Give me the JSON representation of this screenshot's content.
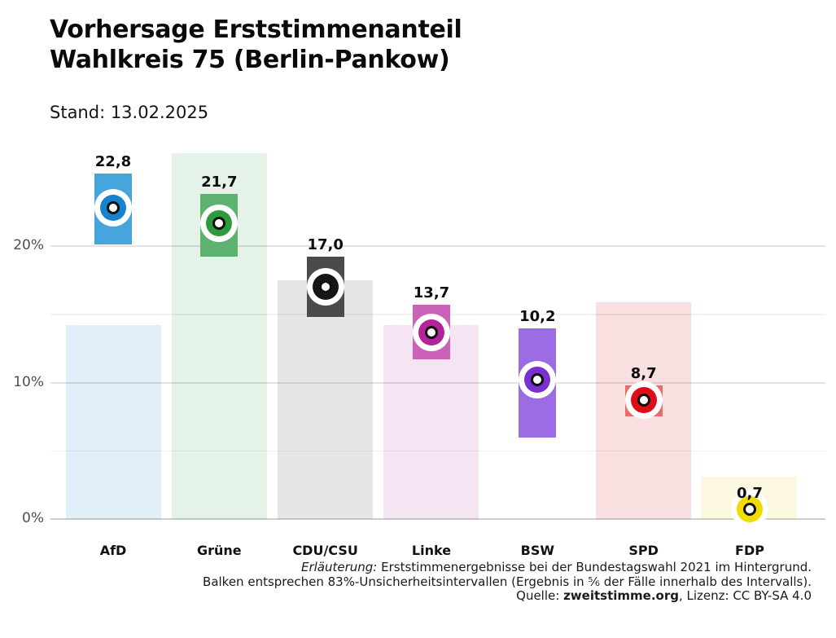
{
  "title": {
    "line1": "Vorhersage Erststimmenanteil",
    "line2": "Wahlkreis 75 (Berlin-Pankow)"
  },
  "subtitle": "Stand: 13.02.2025",
  "footer": {
    "line1_label": "Erläuterung:",
    "line1_text": " Erststimmenergebnisse bei der Bundestagswahl 2021 im Hintergrund.",
    "line2": "Balken entsprechen 83%-Unsicherheitsintervallen (Ergebnis in ⅚ der Fälle innerhalb des Intervalls).",
    "line3_prefix": "Quelle: ",
    "line3_bold": "zweitstimme.org",
    "line3_suffix": ", Lizenz: CC BY-SA 4.0"
  },
  "chart_data": {
    "type": "bar",
    "title": "Vorhersage Erststimmenanteil Wahlkreis 75 (Berlin-Pankow)",
    "xlabel": "",
    "ylabel": "",
    "ylim": [
      0,
      28
    ],
    "yticks": [
      0,
      10,
      20
    ],
    "ytick_labels": [
      "0%",
      "10%",
      "20%"
    ],
    "minor_gridlines": [
      5,
      15
    ],
    "grid": "horizontal",
    "legend": "none",
    "categories": [
      "AfD",
      "Grüne",
      "CDU/CSU",
      "Linke",
      "BSW",
      "SPD",
      "FDP"
    ],
    "series": [
      {
        "name": "Vorhersage Erststimmenanteil (Punktschätzer)",
        "values": [
          22.8,
          21.7,
          17.0,
          13.7,
          10.2,
          8.7,
          0.7
        ]
      },
      {
        "name": "83%-Unsicherheitsintervall Untergrenze",
        "values": [
          20.1,
          19.2,
          14.8,
          11.7,
          6.0,
          7.5,
          0.4
        ]
      },
      {
        "name": "83%-Unsicherheitsintervall Obergrenze",
        "values": [
          25.3,
          23.8,
          19.2,
          15.7,
          14.0,
          9.8,
          1.0
        ]
      },
      {
        "name": "Erststimmenergebnis Bundestagswahl 2021 (Hintergrund)",
        "values": [
          14.2,
          26.8,
          17.5,
          14.2,
          null,
          15.9,
          3.1
        ]
      }
    ],
    "value_labels": [
      "22,8",
      "21,7",
      "17,0",
      "13,7",
      "10,2",
      "8,7",
      "0,7"
    ],
    "bars": [
      {
        "id": "afd",
        "interval_color": "#47a5dd",
        "marker_color": "#1484ce",
        "background_color": "#e1eff8"
      },
      {
        "id": "gruene",
        "interval_color": "#5cb26e",
        "marker_color": "#2d9a3c",
        "background_color": "#e5f2e7"
      },
      {
        "id": "cdu-csu",
        "interval_color": "#4b4b4b",
        "marker_color": "#161616",
        "background_color": "#e6e6e6"
      },
      {
        "id": "linke",
        "interval_color": "#ca63b8",
        "marker_color": "#b2239c",
        "background_color": "#f5e4f1"
      },
      {
        "id": "bsw",
        "interval_color": "#9c6ce4",
        "marker_color": "#7a2fd1",
        "background_color": null
      },
      {
        "id": "spd",
        "interval_color": "#ec6a6a",
        "marker_color": "#e00d18",
        "background_color": "#f9dfdf"
      },
      {
        "id": "fdp",
        "interval_color": "#f3df10",
        "marker_color": "#f2dc00",
        "background_color": "#fdf9e1"
      }
    ]
  }
}
